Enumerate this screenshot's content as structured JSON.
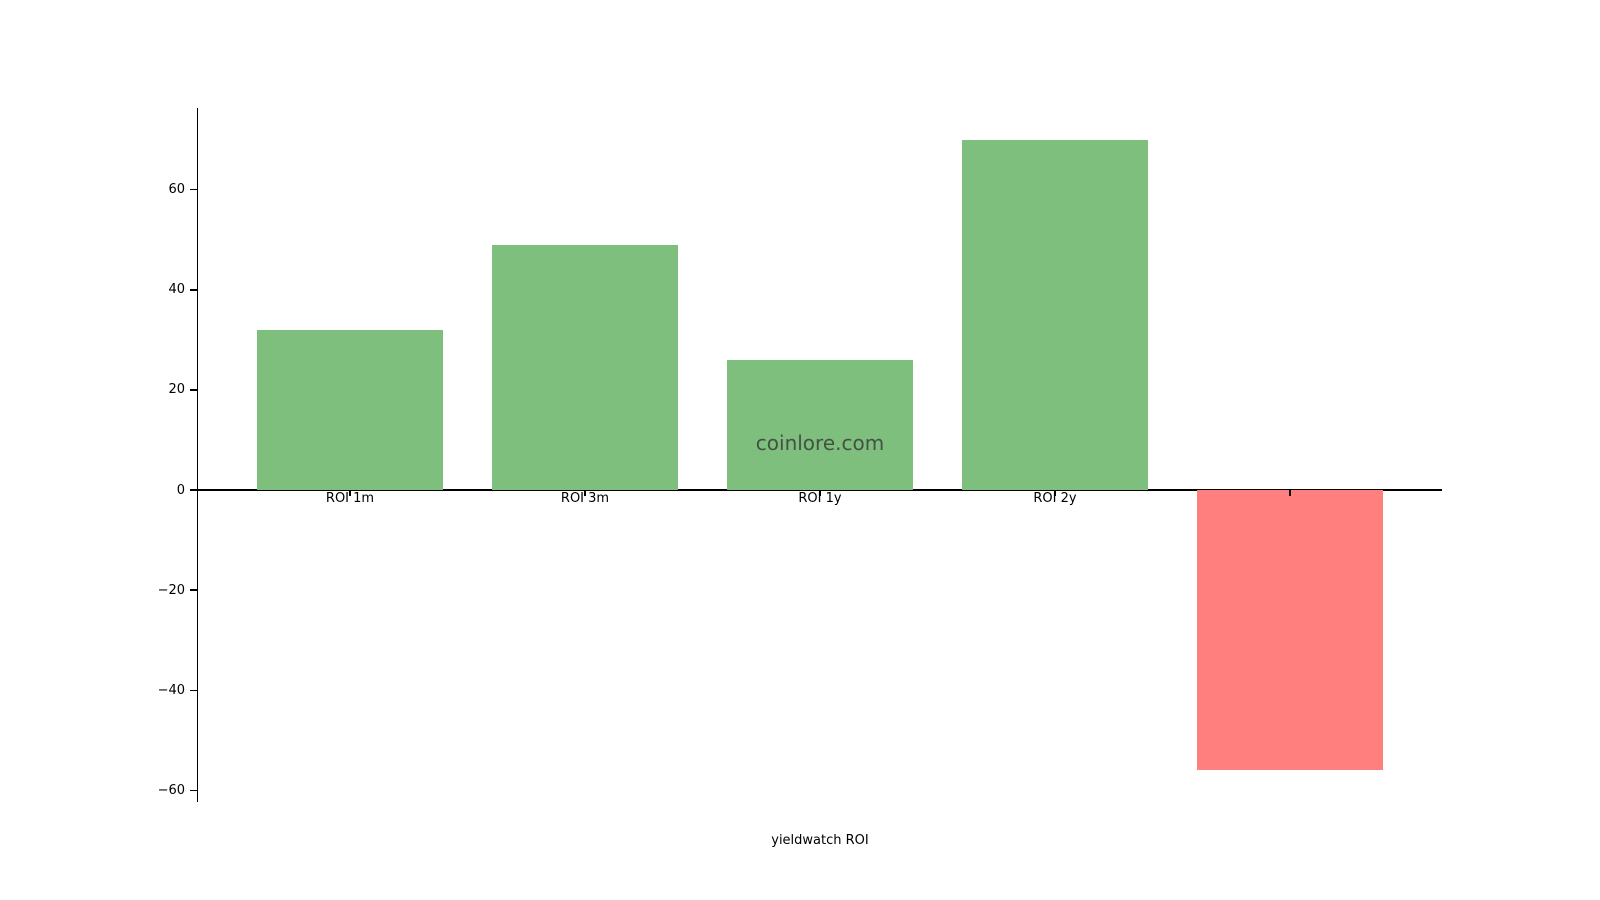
{
  "watermark": "coinlore.com",
  "chart_data": {
    "type": "bar",
    "title": "",
    "xlabel": "yieldwatch ROI",
    "ylabel": "",
    "categories": [
      "ROI 1m",
      "ROI 3m",
      "ROI 1y",
      "ROI 2y",
      ""
    ],
    "values": [
      32,
      49,
      26,
      70,
      -56
    ],
    "yticks": [
      60,
      40,
      20,
      0,
      -20,
      -40,
      -60
    ],
    "ylim": [
      -62.3,
      76.3
    ],
    "grid": false,
    "legend": null,
    "colors": {
      "positive_bar": "#7ebf7e",
      "negative_bar": "#ff7f7f",
      "axis": "#000000",
      "tick_text": "#000000",
      "watermark_text": "#3c3c3c"
    }
  }
}
